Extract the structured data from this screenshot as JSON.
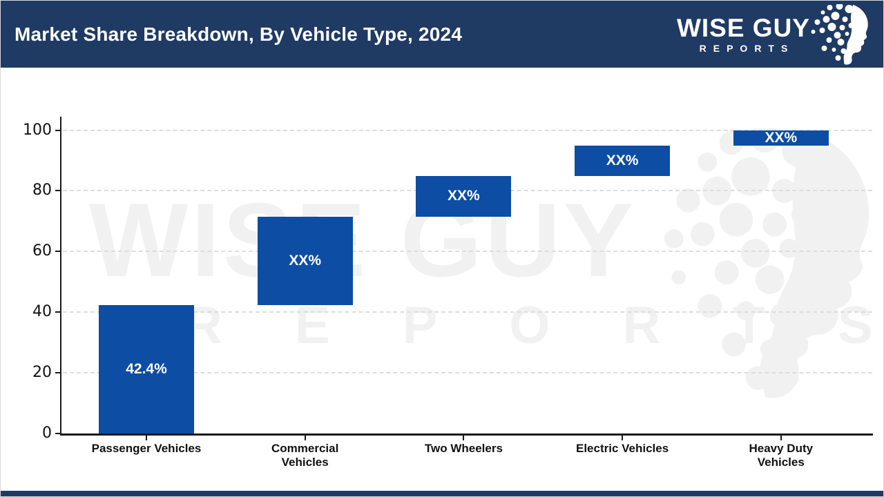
{
  "header": {
    "title": "Market Share Breakdown, By Vehicle Type, 2024",
    "brand": {
      "line1": "WISE GUY",
      "line2": "REPORTS"
    }
  },
  "watermark": {
    "line1": "WISE GUY",
    "line2": "R E P O R T S"
  },
  "colors": {
    "header_bg": "#1f3a63",
    "footer_bg": "#1f3a63",
    "bar": "#0d4da3",
    "bar_label": "#ffffff",
    "grid": "#dcdcdc",
    "axis": "#1a1a1a",
    "watermark": "#f1f1f2"
  },
  "chart_data": {
    "type": "bar",
    "variant": "waterfall",
    "title": "Market Share Breakdown, By Vehicle Type, 2024",
    "categories": [
      "Passenger Vehicles",
      "Commercial Vehicles",
      "Two Wheelers",
      "Electric Vehicles",
      "Heavy Duty Vehicles"
    ],
    "bars": [
      {
        "category": "Passenger Vehicles",
        "start": 0,
        "end": 42.4,
        "label": "42.4%"
      },
      {
        "category": "Commercial Vehicles",
        "start": 42.4,
        "end": 71.5,
        "label": "XX%"
      },
      {
        "category": "Two Wheelers",
        "start": 71.5,
        "end": 85,
        "label": "XX%"
      },
      {
        "category": "Electric Vehicles",
        "start": 85,
        "end": 95,
        "label": "XX%"
      },
      {
        "category": "Heavy Duty Vehicles",
        "start": 95,
        "end": 100,
        "label": "XX%"
      }
    ],
    "xtick_labels": [
      "Passenger Vehicles",
      "Commercial\nVehicles",
      "Two Wheelers",
      "Electric Vehicles",
      "Heavy Duty\nVehicles"
    ],
    "ylabel": "",
    "xlabel": "",
    "ylim": [
      0,
      104
    ],
    "yticks": [
      0,
      20,
      40,
      60,
      80,
      100
    ],
    "grid": {
      "axis": "y",
      "style": "dashed"
    },
    "legend": null
  }
}
